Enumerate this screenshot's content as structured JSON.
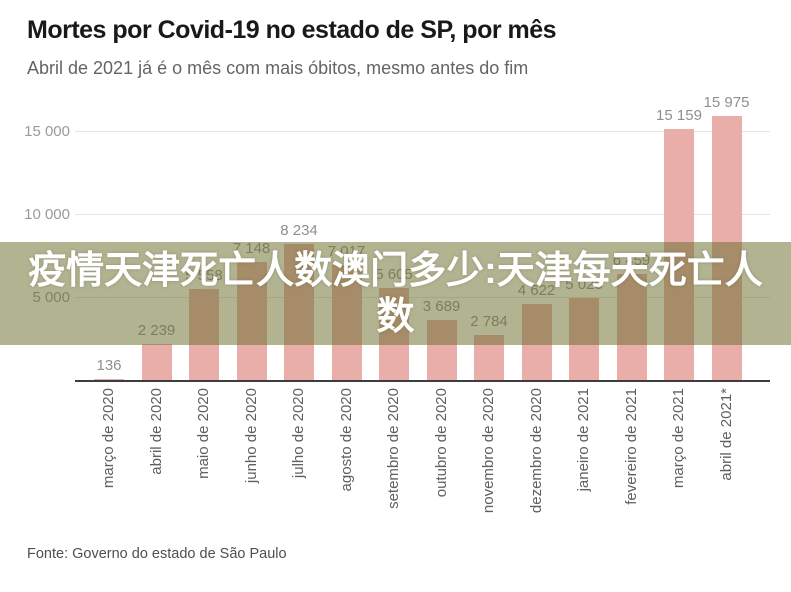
{
  "header": {
    "title": "Mortes por Covid-19 no estado de SP, por mês",
    "subtitle": "Abril de 2021 já é o mês com mais óbitos, mesmo antes do fim"
  },
  "overlay": {
    "text_line1": "疫情天津死亡人数澳门多少:天津每天死亡人",
    "text_line2": "数",
    "full_text": "疫情天津死亡人数澳门多少:天津每天死亡人数",
    "band_color": "#6a6e2c",
    "text_color": "#ffffff"
  },
  "footer": {
    "source": "Fonte: Governo do estado de São Paulo"
  },
  "chart_data": {
    "type": "bar",
    "title": "Mortes por Covid-19 no estado de SP, por mês",
    "subtitle": "Abril de 2021 já é o mês com mais óbitos, mesmo antes do fim",
    "categories": [
      "março de 2020",
      "abril de 2020",
      "maio de 2020",
      "junho de 2020",
      "julho de 2020",
      "agosto de 2020",
      "setembro de 2020",
      "outubro de 2020",
      "novembro de 2020",
      "dezembro de 2020",
      "janeiro de 2021",
      "fevereiro de 2021",
      "março de 2021",
      "abril de 2021*"
    ],
    "values": [
      136,
      2239,
      5558,
      7148,
      8234,
      7017,
      5605,
      3689,
      2784,
      4622,
      5028,
      6459,
      15159,
      15975
    ],
    "value_labels": [
      "136",
      "2 239",
      "5 558",
      "7 148",
      "8 234",
      "7 017",
      "5 605",
      "3 689",
      "2 784",
      "4 622",
      "5 028",
      "6 459",
      "15 159",
      "15 975"
    ],
    "hidden_by_overlay_labels": [
      "5 558",
      "5 605",
      "4 622",
      "5 028"
    ],
    "xlabel": "",
    "ylabel": "",
    "yticks": [
      5000,
      10000,
      15000
    ],
    "ytick_labels": [
      "5 000",
      "10 000",
      "15 000"
    ],
    "ylim": [
      0,
      17000
    ],
    "bar_color": "#e9aea9",
    "grid": true,
    "legend": false,
    "source": "Fonte: Governo do estado de São Paulo"
  }
}
